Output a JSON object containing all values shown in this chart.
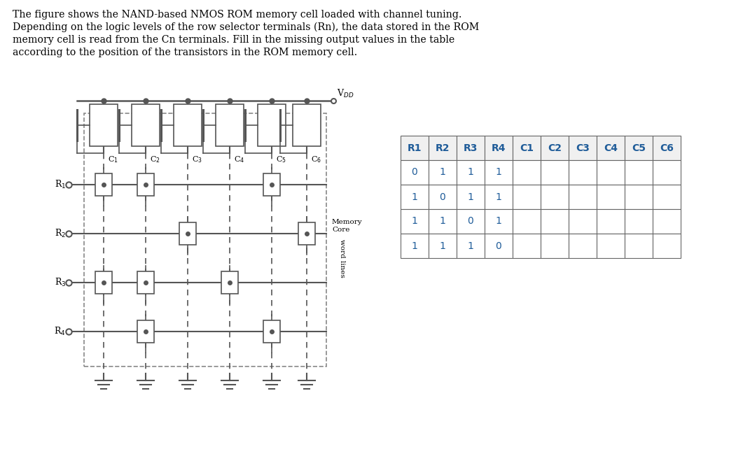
{
  "paragraph_lines": [
    "The figure shows the NAND-based NMOS ROM memory cell loaded with channel tuning.",
    "Depending on the logic levels of the row selector terminals (Rn), the data stored in the ROM",
    "memory cell is read from the Cn terminals. Fill in the missing output values in the table",
    "according to the position of the transistors in the ROM memory cell."
  ],
  "table_headers": [
    "R1",
    "R2",
    "R3",
    "R4",
    "C1",
    "C2",
    "C3",
    "C4",
    "C5",
    "C6"
  ],
  "table_data": [
    [
      "0",
      "1",
      "1",
      "1",
      "",
      "",
      "",
      "",
      "",
      ""
    ],
    [
      "1",
      "0",
      "1",
      "1",
      "",
      "",
      "",
      "",
      "",
      ""
    ],
    [
      "1",
      "1",
      "0",
      "1",
      "",
      "",
      "",
      "",
      "",
      ""
    ],
    [
      "1",
      "1",
      "1",
      "0",
      "",
      "",
      "",
      "",
      "",
      ""
    ]
  ],
  "header_color": "#1f5c99",
  "data_color_filled": "#1f5c99",
  "circuit_color": "#555555",
  "background_color": "#ffffff",
  "transistor_positions": {
    "0": [
      0,
      1,
      4
    ],
    "1": [
      2,
      5
    ],
    "2": [
      0,
      1,
      3
    ],
    "3": [
      1,
      4
    ]
  },
  "row_labels": [
    "R$_1$",
    "R$_2$",
    "R$_3$",
    "R$_4$"
  ],
  "col_labels": [
    "C$_1$",
    "C$_2$",
    "C$_3$",
    "C$_4$",
    "C$_5$",
    "C$_6$"
  ],
  "vdd_label": "V$_{DD}$",
  "memory_core_label": "Memory\nCore",
  "word_lines_label": "word lines"
}
